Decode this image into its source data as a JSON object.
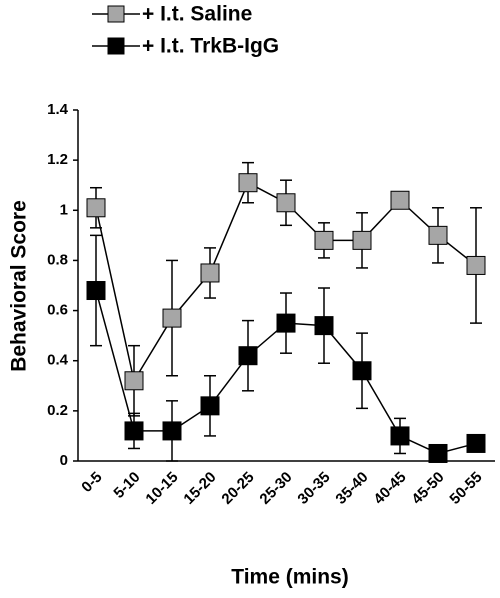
{
  "chart_data": {
    "type": "line",
    "x_label": "Time (mins)",
    "y_label": "Behavioral Score",
    "categories": [
      "0-5",
      "5-10",
      "10-15",
      "15-20",
      "20-25",
      "25-30",
      "30-35",
      "35-40",
      "40-45",
      "45-50",
      "50-55"
    ],
    "ylim": [
      0,
      1.4
    ],
    "yticks": [
      0,
      0.2,
      0.4,
      0.6,
      0.8,
      1,
      1.2,
      1.4
    ],
    "grid": false,
    "legend": "top-left",
    "series": [
      {
        "name": "+ I.t. Saline",
        "color": "#a6a6a6",
        "values": [
          1.01,
          0.32,
          0.57,
          0.75,
          1.11,
          1.03,
          0.88,
          0.88,
          1.04,
          0.9,
          0.78
        ],
        "errors": [
          0.08,
          0.14,
          0.23,
          0.1,
          0.08,
          0.09,
          0.07,
          0.11,
          0.02,
          0.11,
          0.23
        ]
      },
      {
        "name": "+ I.t. TrkB-IgG",
        "color": "#000000",
        "values": [
          0.68,
          0.12,
          0.12,
          0.22,
          0.42,
          0.55,
          0.54,
          0.36,
          0.1,
          0.03,
          0.07
        ],
        "errors": [
          0.22,
          0.07,
          0.12,
          0.12,
          0.14,
          0.12,
          0.15,
          0.15,
          0.07,
          0.03,
          0.03
        ]
      }
    ]
  }
}
